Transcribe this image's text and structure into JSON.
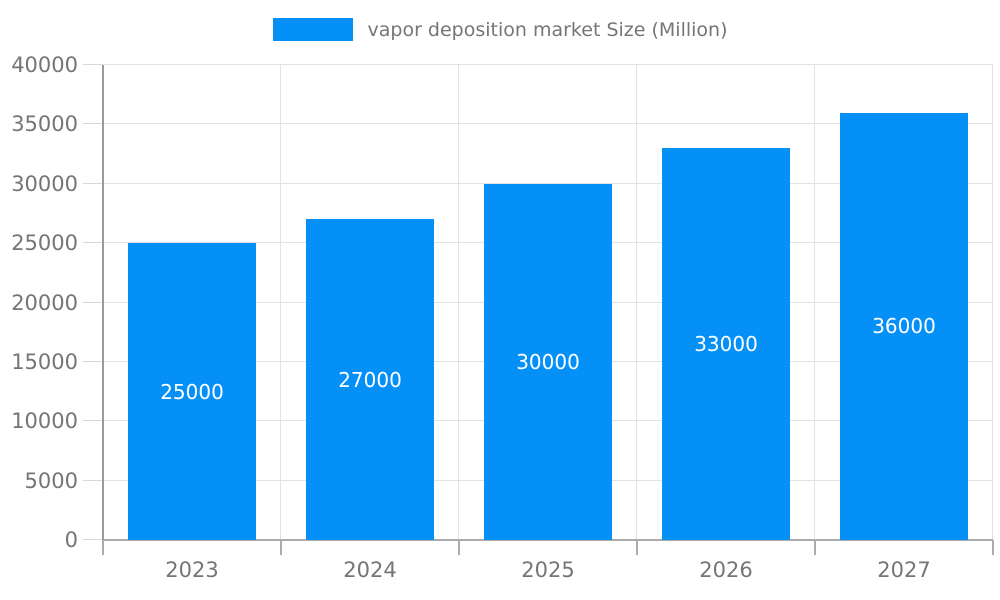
{
  "legend": {
    "label": "vapor deposition market Size (Million)"
  },
  "colors": {
    "bar": "#0590F8",
    "grid": "#e2e2e2",
    "axis": "#9a9a9a",
    "tick_text": "#757575",
    "bar_label": "#ffffff"
  },
  "chart_data": {
    "type": "bar",
    "title": "",
    "xlabel": "",
    "ylabel": "",
    "categories": [
      "2023",
      "2024",
      "2025",
      "2026",
      "2027"
    ],
    "series": [
      {
        "name": "vapor deposition market Size (Million)",
        "values": [
          25000,
          27000,
          30000,
          33000,
          36000
        ]
      }
    ],
    "values": [
      25000,
      27000,
      30000,
      33000,
      36000
    ],
    "bar_labels": [
      "25000",
      "27000",
      "30000",
      "33000",
      "36000"
    ],
    "yticks": [
      0,
      5000,
      10000,
      15000,
      20000,
      25000,
      30000,
      35000,
      40000
    ],
    "ylim": [
      0,
      40000
    ],
    "grid": true,
    "legend_position": "top",
    "bar_label_position": "center"
  }
}
